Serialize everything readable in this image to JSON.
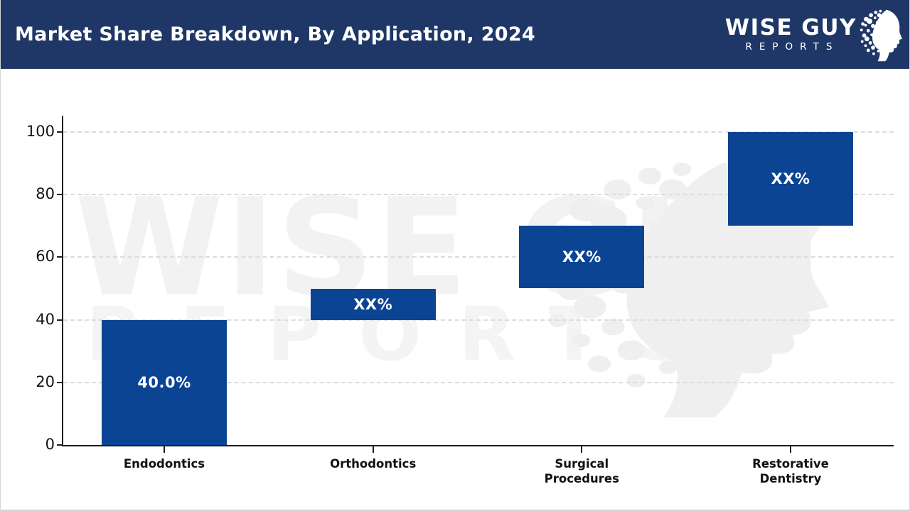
{
  "header": {
    "title": "Market Share Breakdown, By Application, 2024",
    "logo": {
      "line1": "WISE GUY",
      "line2": "REPORTS"
    }
  },
  "watermark": {
    "line1": "WISE GUY",
    "line2": "REPORTS"
  },
  "chart_data": {
    "type": "bar",
    "subtype": "waterfall",
    "title": "Market Share Breakdown, By Application, 2024",
    "categories": [
      "Endodontics",
      "Orthodontics",
      "Surgical\nProcedures",
      "Restorative\nDentistry"
    ],
    "segments": [
      {
        "category": "Endodontics",
        "start": 0,
        "end": 40,
        "label": "40.0%"
      },
      {
        "category": "Orthodontics",
        "start": 40,
        "end": 50,
        "label": "XX%"
      },
      {
        "category": "Surgical Procedures",
        "start": 50,
        "end": 70,
        "label": "XX%"
      },
      {
        "category": "Restorative Dentistry",
        "start": 70,
        "end": 100,
        "label": "XX%"
      }
    ],
    "y_ticks": [
      0,
      20,
      40,
      60,
      80,
      100
    ],
    "ylim": [
      0,
      105
    ],
    "xlabel": "",
    "ylabel": "",
    "grid": "horizontal-dashed",
    "legend": "none",
    "bar_color": "#0c4494",
    "bar_label_color": "#ffffff",
    "axis_color": "#1c1c1c",
    "gridline_color": "#dcdcdc"
  },
  "colors": {
    "header_bg": "#1f3767",
    "header_text": "#ffffff",
    "chart_bg": "#ffffff",
    "watermark": "#f2f2f2"
  }
}
